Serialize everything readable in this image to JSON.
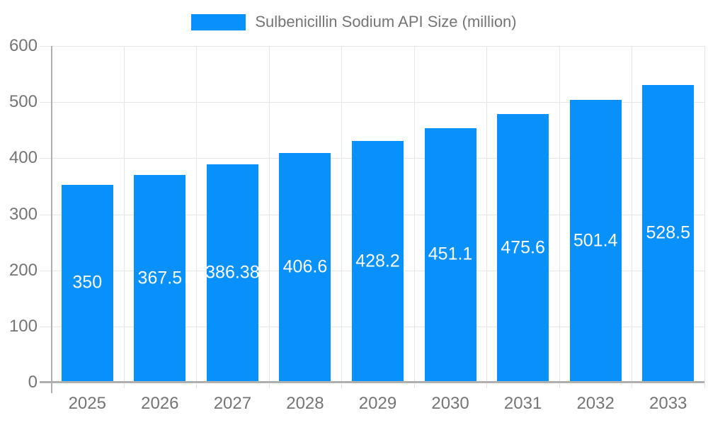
{
  "chart_data": {
    "type": "bar",
    "title": "Sulbenicillin Sodium API Size (million)",
    "legend": "Sulbenicillin Sodium API Size (million)",
    "legend_position": "top-center",
    "categories": [
      "2025",
      "2026",
      "2027",
      "2028",
      "2029",
      "2030",
      "2031",
      "2032",
      "2033"
    ],
    "values": [
      350,
      367.5,
      386.38,
      406.6,
      428.2,
      451.1,
      475.6,
      501.4,
      528.5
    ],
    "xlabel": "",
    "ylabel": "",
    "ylim": [
      0,
      600
    ],
    "yticks": [
      0,
      100,
      200,
      300,
      400,
      500,
      600
    ],
    "grid": true,
    "colors": {
      "bar": "#0890fb",
      "axis": "#b0b0b0",
      "gridline": "#e6e6e6",
      "label_text": "#757575",
      "value_text": "#ffffff",
      "background": "#ffffff"
    }
  }
}
